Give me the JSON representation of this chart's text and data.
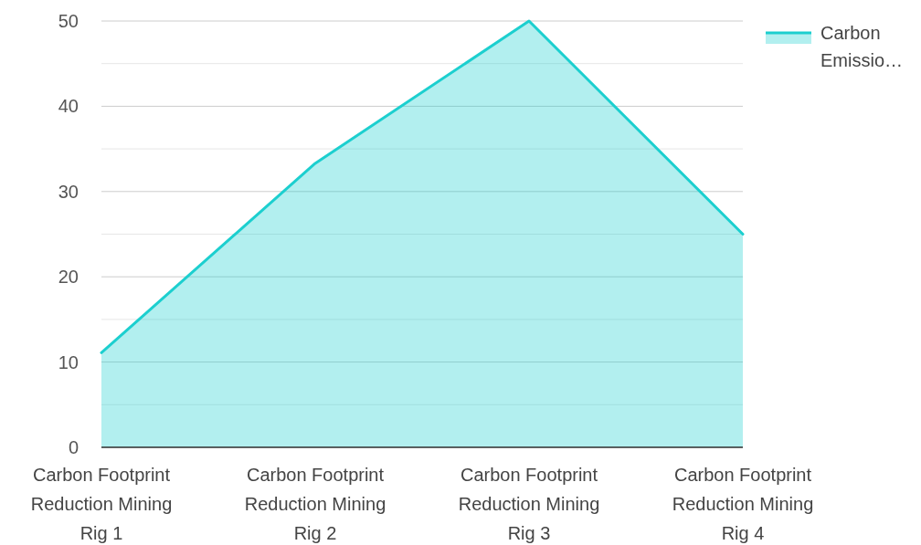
{
  "chart_data": {
    "type": "area",
    "categories": [
      "Carbon Footprint Reduction Mining Rig 1",
      "Carbon Footprint Reduction Mining Rig 2",
      "Carbon Footprint Reduction Mining Rig 3",
      "Carbon Footprint Reduction Mining Rig 4"
    ],
    "series": [
      {
        "name": "Carbon Emissio…",
        "color": "#1ccfcf",
        "values": [
          11.1,
          33.3,
          50,
          25
        ]
      }
    ],
    "ylim": [
      0,
      50
    ],
    "yticks": [
      0,
      {
        "value": 5,
        "label": null
      },
      10,
      {
        "value": 15,
        "label": null
      },
      20,
      {
        "value": 25,
        "label": null
      },
      30,
      {
        "value": 35,
        "label": null
      },
      40,
      {
        "value": 45,
        "label": null
      },
      50
    ],
    "grid": "y",
    "legend": "top right",
    "line_style": "solid"
  }
}
